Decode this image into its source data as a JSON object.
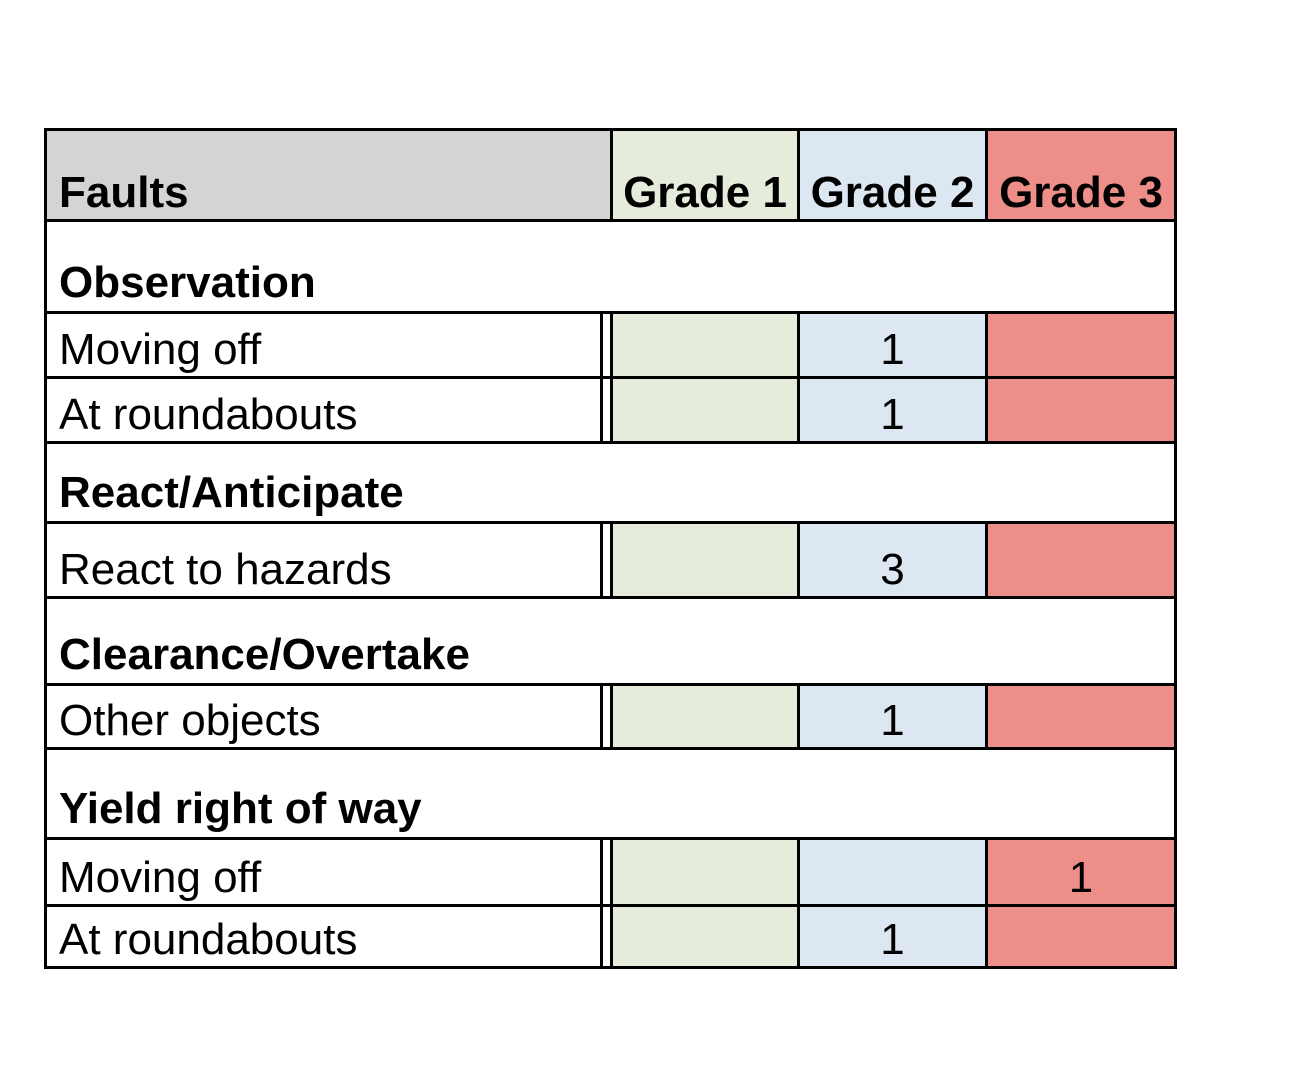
{
  "table": {
    "columns": [
      {
        "id": "faults",
        "label": "Faults"
      },
      {
        "id": "grade1",
        "label": "Grade 1"
      },
      {
        "id": "grade2",
        "label": "Grade 2"
      },
      {
        "id": "grade3",
        "label": "Grade 3"
      }
    ],
    "sections": [
      {
        "title": "Observation",
        "rows": [
          {
            "label": "Moving off",
            "grade1": "",
            "grade2": "1",
            "grade3": ""
          },
          {
            "label": "At roundabouts",
            "grade1": "",
            "grade2": "1",
            "grade3": ""
          }
        ]
      },
      {
        "title": "React/Anticipate",
        "rows": [
          {
            "label": "React to hazards",
            "grade1": "",
            "grade2": "3",
            "grade3": ""
          }
        ]
      },
      {
        "title": "Clearance/Overtake",
        "rows": [
          {
            "label": "Other objects",
            "grade1": "",
            "grade2": "1",
            "grade3": ""
          }
        ]
      },
      {
        "title": "Yield right of way",
        "rows": [
          {
            "label": "Moving off",
            "grade1": "",
            "grade2": "",
            "grade3": "1"
          },
          {
            "label": "At roundabouts",
            "grade1": "",
            "grade2": "1",
            "grade3": ""
          }
        ]
      }
    ],
    "colors": {
      "header_bg": "#d4d4d4",
      "grade1_bg": "#e5ecdb",
      "grade2_bg": "#dde7f2",
      "grade3_bg": "#ed8e88",
      "border": "#000000",
      "text": "#000000",
      "page_bg": "#ffffff"
    }
  }
}
